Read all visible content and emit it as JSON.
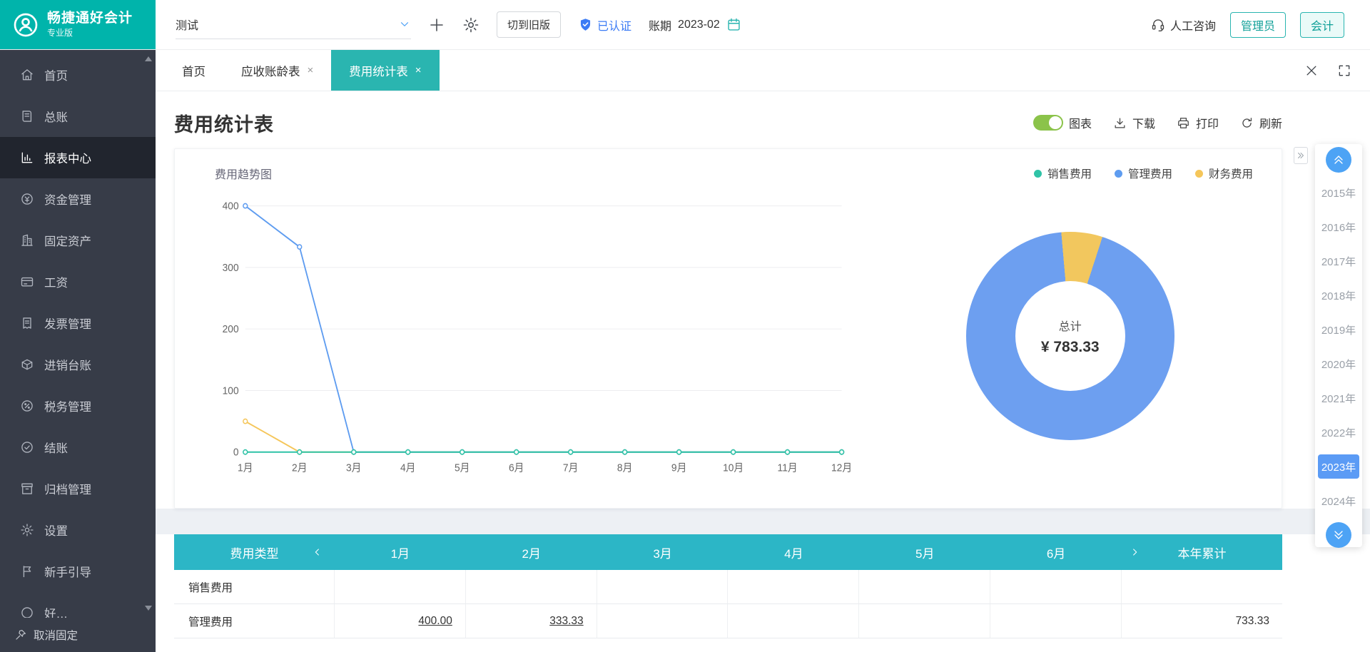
{
  "brand": {
    "name": "畅捷通好会计",
    "edition": "专业版"
  },
  "header": {
    "org_name": "测试",
    "switch_old_label": "切到旧版",
    "certified_label": "已认证",
    "period_label": "账期",
    "period_value": "2023-02",
    "support_label": "人工咨询",
    "admin_label": "管理员",
    "role_label": "会计"
  },
  "sidebar": {
    "items": [
      {
        "label": "首页",
        "icon": "home",
        "active": false
      },
      {
        "label": "总账",
        "icon": "ledger",
        "active": false
      },
      {
        "label": "报表中心",
        "icon": "report",
        "active": true
      },
      {
        "label": "资金管理",
        "icon": "funds",
        "active": false
      },
      {
        "label": "固定资产",
        "icon": "asset",
        "active": false
      },
      {
        "label": "工资",
        "icon": "salary",
        "active": false
      },
      {
        "label": "发票管理",
        "icon": "invoice",
        "active": false
      },
      {
        "label": "进销台账",
        "icon": "inout",
        "active": false
      },
      {
        "label": "税务管理",
        "icon": "tax",
        "active": false
      },
      {
        "label": "结账",
        "icon": "closing",
        "active": false
      },
      {
        "label": "归档管理",
        "icon": "archive",
        "active": false
      },
      {
        "label": "设置",
        "icon": "settings",
        "active": false
      },
      {
        "label": "新手引导",
        "icon": "guide",
        "active": false
      },
      {
        "label": "好…",
        "icon": "misc",
        "active": false
      }
    ],
    "unpin_label": "取消固定"
  },
  "tabs": [
    {
      "label": "首页",
      "closable": false,
      "active": false
    },
    {
      "label": "应收账龄表",
      "closable": true,
      "active": false
    },
    {
      "label": "费用统计表",
      "closable": true,
      "active": true
    }
  ],
  "page": {
    "title": "费用统计表",
    "chart_toggle_label": "图表",
    "download_label": "下载",
    "print_label": "打印",
    "refresh_label": "刷新"
  },
  "chart_data": [
    {
      "type": "line",
      "title": "费用趋势图",
      "categories": [
        "1月",
        "2月",
        "3月",
        "4月",
        "5月",
        "6月",
        "7月",
        "8月",
        "9月",
        "10月",
        "11月",
        "12月"
      ],
      "series": [
        {
          "name": "销售费用",
          "color": "#2fc3a7",
          "values": [
            0,
            0,
            0,
            0,
            0,
            0,
            0,
            0,
            0,
            0,
            0,
            0
          ]
        },
        {
          "name": "管理费用",
          "color": "#5e9cf0",
          "values": [
            400,
            333.33,
            0,
            0,
            0,
            0,
            0,
            0,
            0,
            0,
            0,
            0
          ]
        },
        {
          "name": "财务费用",
          "color": "#f5c65a",
          "values": [
            50,
            0,
            0,
            0,
            0,
            0,
            0,
            0,
            0,
            0,
            0,
            0
          ]
        }
      ],
      "ylim": [
        0,
        400
      ],
      "yticks": [
        0,
        100,
        200,
        300,
        400
      ],
      "grid": true,
      "legend_position": "top-right"
    },
    {
      "type": "pie",
      "subtype": "donut",
      "center_label": "总计",
      "center_value": "¥ 783.33",
      "rotation_deg": -5,
      "slices": [
        {
          "name": "财务费用",
          "value": 50,
          "color": "#f2c75e"
        },
        {
          "name": "管理费用",
          "value": 733.33,
          "color": "#6d9ff0"
        }
      ]
    }
  ],
  "table": {
    "headers": [
      "费用类型",
      "1月",
      "2月",
      "3月",
      "4月",
      "5月",
      "6月",
      "本年累计"
    ],
    "rows": [
      {
        "name": "销售费用",
        "values": [
          "",
          "",
          "",
          "",
          "",
          "",
          ""
        ],
        "link_cols": []
      },
      {
        "name": "管理费用",
        "values": [
          "400.00",
          "333.33",
          "",
          "",
          "",
          "",
          "733.33"
        ],
        "link_cols": [
          0,
          1
        ]
      }
    ]
  },
  "year_panel": {
    "years": [
      "2015年",
      "2016年",
      "2017年",
      "2018年",
      "2019年",
      "2020年",
      "2021年",
      "2022年",
      "2023年",
      "2024年"
    ],
    "selected": "2023年"
  },
  "colors": {
    "brand_teal": "#00b4ab",
    "tab_active": "#2ab5b0",
    "table_header": "#2cb6c6",
    "year_selected": "#5b9bf5",
    "toggle_on": "#8bc34a",
    "certified_blue": "#3b7bf5",
    "sidebar_bg": "#373c48",
    "sidebar_active": "#21252e"
  }
}
